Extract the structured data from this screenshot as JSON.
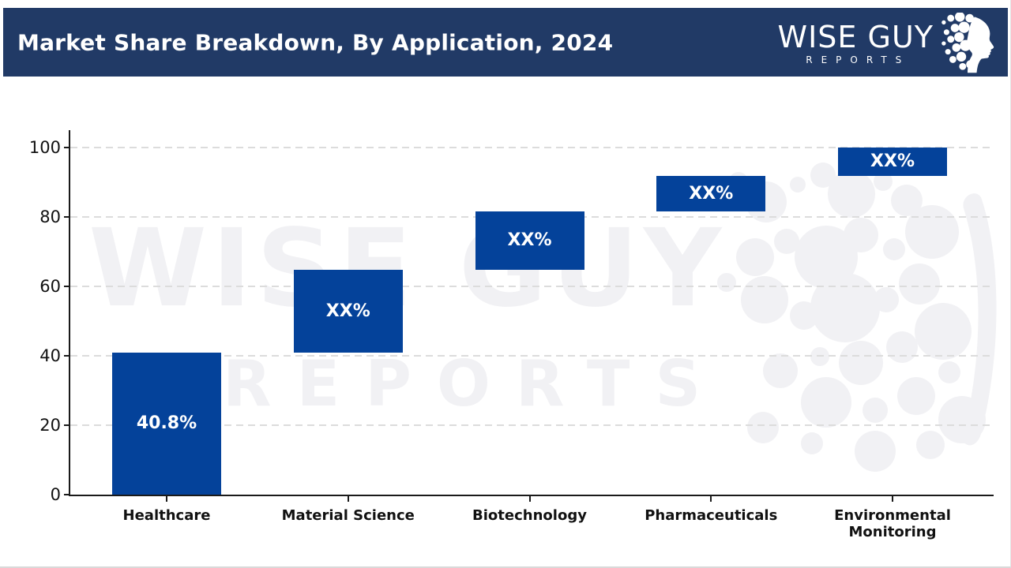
{
  "header": {
    "title": "Market Share Breakdown, By Application, 2024",
    "logo": {
      "line1": "WISE GUY",
      "line2": "REPORTS"
    }
  },
  "watermark": {
    "line1": "WISE GUY",
    "line2": "REPORTS"
  },
  "colors": {
    "header_bg": "#213a66",
    "bar": "#04429a",
    "watermark": "#f1f1f4",
    "gridline": "#dcdcdc",
    "axis": "#1a1a1a"
  },
  "chart_data": {
    "type": "bar",
    "subtype": "waterfall",
    "title": "Market Share Breakdown, By Application, 2024",
    "xlabel": "",
    "ylabel": "",
    "ylim": [
      0,
      105
    ],
    "yticks": [
      0,
      20,
      40,
      60,
      80,
      100
    ],
    "grid": "horizontal-dashed",
    "legend": "none",
    "bar_color": "#04429a",
    "categories": [
      "Healthcare",
      "Material Science",
      "Biotechnology",
      "Pharmaceuticals",
      "Environmental Monitoring"
    ],
    "segments": [
      {
        "category": "Healthcare",
        "start": 0,
        "end": 40.8,
        "value_label": "40.8%"
      },
      {
        "category": "Material Science",
        "start": 40.8,
        "end": 64.8,
        "value_label": "XX%"
      },
      {
        "category": "Biotechnology",
        "start": 64.8,
        "end": 81.6,
        "value_label": "XX%"
      },
      {
        "category": "Pharmaceuticals",
        "start": 81.6,
        "end": 91.8,
        "value_label": "XX%"
      },
      {
        "category": "Environmental Monitoring",
        "start": 91.8,
        "end": 100,
        "value_label": "XX%"
      }
    ]
  }
}
